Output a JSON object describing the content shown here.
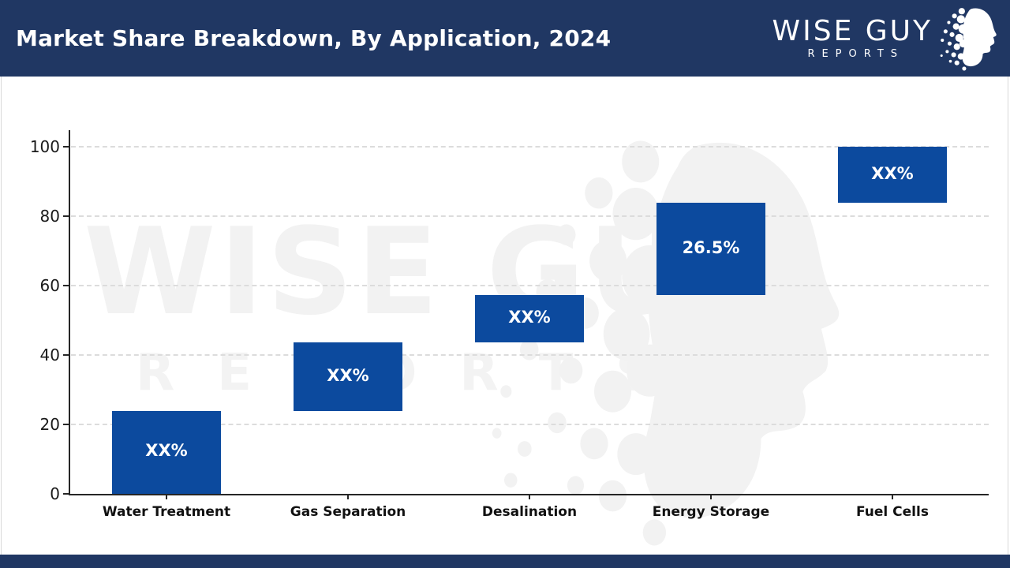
{
  "header": {
    "title": "Market Share Breakdown, By Application, 2024",
    "logo": {
      "wordmark": "WISE GUY",
      "subtext": "REPORTS"
    }
  },
  "watermark": {
    "line1": "WISE GUY",
    "line2": "REPORTS"
  },
  "chart_data": {
    "type": "bar",
    "subtype": "waterfall",
    "title": "Market Share Breakdown, By Application, 2024",
    "categories": [
      "Water Treatment",
      "Gas Separation",
      "Desalination",
      "Energy Storage",
      "Fuel Cells"
    ],
    "segments": [
      {
        "category": "Water Treatment",
        "start": 0,
        "end": 23.9,
        "value": 23.9,
        "label": "XX%"
      },
      {
        "category": "Gas Separation",
        "start": 23.9,
        "end": 43.6,
        "value": 19.7,
        "label": "XX%"
      },
      {
        "category": "Desalination",
        "start": 43.6,
        "end": 57.3,
        "value": 13.7,
        "label": "XX%"
      },
      {
        "category": "Energy Storage",
        "start": 57.3,
        "end": 83.8,
        "value": 26.5,
        "label": "26.5%"
      },
      {
        "category": "Fuel Cells",
        "start": 83.8,
        "end": 100,
        "value": 16.2,
        "label": "XX%"
      }
    ],
    "xlabel": "",
    "ylabel": "",
    "ylim": [
      0,
      100
    ],
    "yticks": [
      0,
      20,
      40,
      60,
      80,
      100
    ],
    "grid": "horizontal-dashed",
    "legend": "none",
    "bar_color": "#0c4a9e",
    "bar_label_color": "#ffffff"
  },
  "colors": {
    "header_bg": "#203763",
    "footer_bg": "#203763",
    "axis": "#262626",
    "grid": "#dcdcdc",
    "watermark": "#f2f2f2"
  }
}
